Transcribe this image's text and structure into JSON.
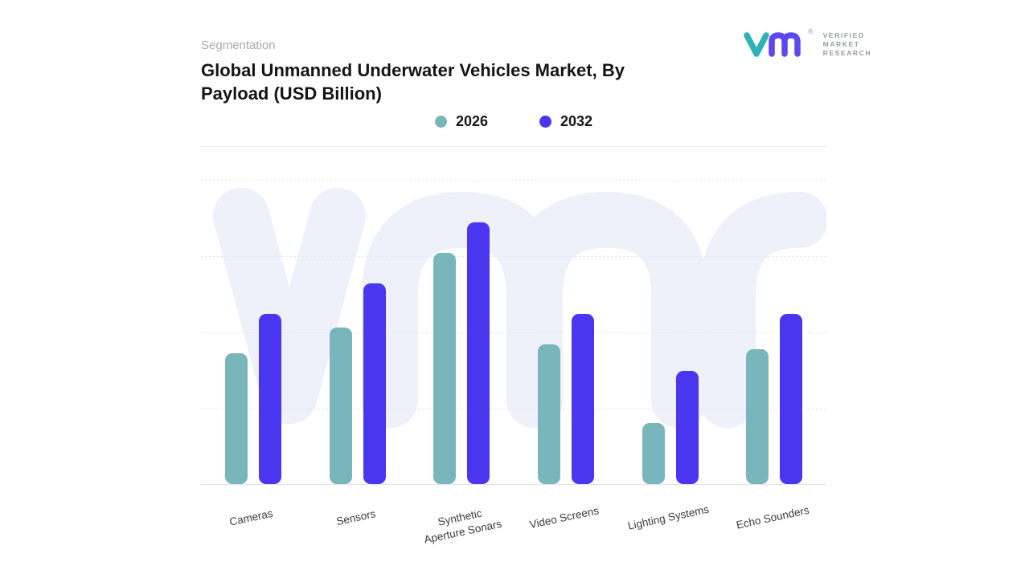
{
  "brand": {
    "registered_mark": "®",
    "name_lines": [
      "VERIFIED",
      "MARKET",
      "RESEARCH"
    ],
    "teal": "#2cb2b8",
    "purple": "#5b49f0"
  },
  "header": {
    "eyebrow": "Segmentation",
    "title": "Global Unmanned Underwater Vehicles Market, By Payload (USD Billion)"
  },
  "chart_data": {
    "type": "bar",
    "title": "Global Unmanned Underwater Vehicles Market, By Payload (USD Billion)",
    "unit": "USD Billion",
    "categories": [
      "Cameras",
      "Sensors",
      "Synthetic Aperture Sonars",
      "Video Screens",
      "Lighting Systems",
      "Echo Sounders"
    ],
    "series": [
      {
        "name": "2026",
        "color": "#79b6bc",
        "values": [
          1.5,
          1.8,
          2.65,
          1.6,
          0.7,
          1.55
        ]
      },
      {
        "name": "2032",
        "color": "#4a36ee",
        "values": [
          1.95,
          2.3,
          3.0,
          1.95,
          1.3,
          1.95
        ]
      }
    ],
    "ylim": [
      0,
      3.5
    ],
    "y_axis_labels_visible": false,
    "grid": {
      "horizontal_dashed": true,
      "lines": 4
    },
    "legend_position": "top-center",
    "bar_corner_radius": 9,
    "watermark": "vm-monogram",
    "watermark_color": "#eef0fa"
  }
}
